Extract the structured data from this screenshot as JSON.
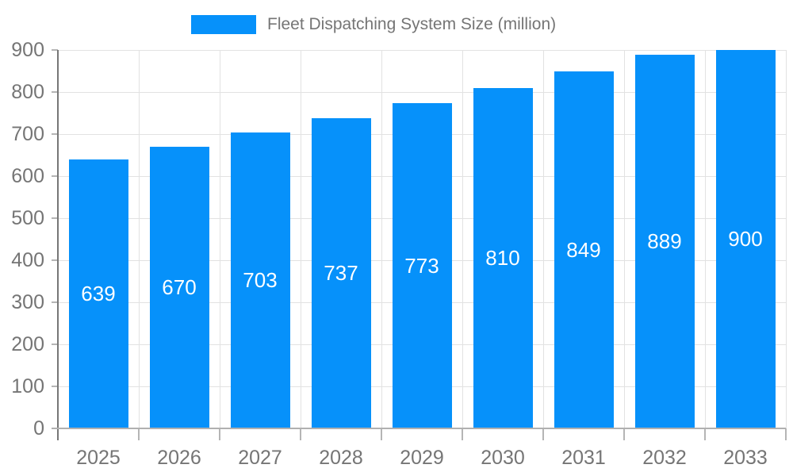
{
  "chart_data": {
    "type": "bar",
    "title": "Fleet Dispatching System Size (million)",
    "categories": [
      "2025",
      "2026",
      "2027",
      "2028",
      "2029",
      "2030",
      "2031",
      "2032",
      "2033"
    ],
    "values": [
      639,
      670,
      703,
      737,
      773,
      810,
      849,
      889,
      900
    ],
    "xlabel": "",
    "ylabel": "",
    "ylim": [
      0,
      900
    ],
    "ytick_step": 100,
    "ytick_labels": [
      "0",
      "100",
      "200",
      "300",
      "400",
      "500",
      "600",
      "700",
      "800",
      "900"
    ],
    "grid": true,
    "legend_position": "top",
    "colors": {
      "bar": "#0691fa",
      "value_label": "#ffffff",
      "axis_label": "#757575",
      "legend_text": "#757575",
      "gridline": "#e2e2e2",
      "y_axis_line": "#777777",
      "x_axis_line": "#b0b0b0",
      "tick": "#b5b5b5",
      "background": "#ffffff"
    }
  }
}
